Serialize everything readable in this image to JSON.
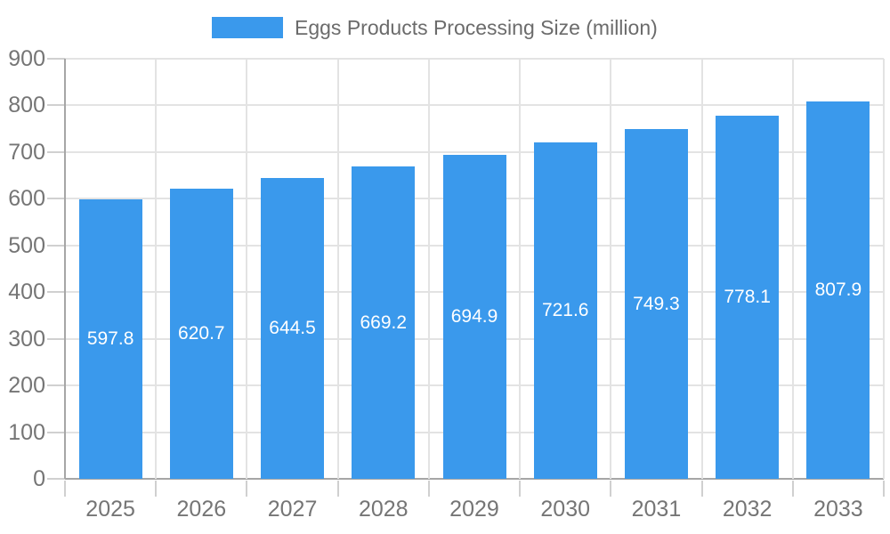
{
  "chart_data": {
    "type": "bar",
    "legend": "Eggs Products Processing Size (million)",
    "legend_position": "top",
    "categories": [
      "2025",
      "2026",
      "2027",
      "2028",
      "2029",
      "2030",
      "2031",
      "2032",
      "2033"
    ],
    "values": [
      597.8,
      620.7,
      644.5,
      669.2,
      694.9,
      721.6,
      749.3,
      778.1,
      807.9
    ],
    "value_labels": [
      "597.8",
      "620.7",
      "644.5",
      "669.2",
      "694.9",
      "721.6",
      "749.3",
      "778.1",
      "807.9"
    ],
    "yticks": [
      0,
      100,
      200,
      300,
      400,
      500,
      600,
      700,
      800,
      900
    ],
    "ylim": [
      0,
      900
    ],
    "grid": true,
    "xlabel": "",
    "ylabel": ""
  },
  "colors": {
    "bar": "#3a99ec",
    "grid": "#e3e3e3",
    "axis": "#a6a6a6",
    "tick": "#d0d0d0",
    "axis_label": "#757575",
    "legend_text": "#6b6b6b",
    "value_label": "#ffffff",
    "background": "#ffffff"
  }
}
